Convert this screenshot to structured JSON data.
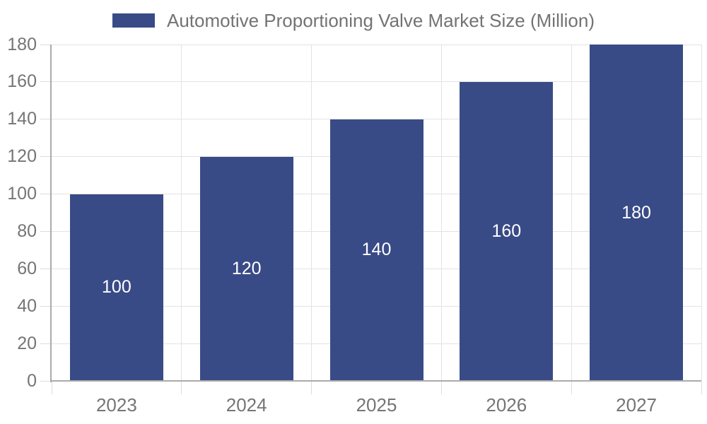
{
  "chart_data": {
    "type": "bar",
    "title": "",
    "categories": [
      "2023",
      "2024",
      "2025",
      "2026",
      "2027"
    ],
    "series": [
      {
        "name": "Automotive Proportioning Valve Market Size (Million)",
        "values": [
          100,
          120,
          140,
          160,
          180
        ]
      }
    ],
    "bar_value_labels": [
      "100",
      "120",
      "140",
      "160",
      "180"
    ],
    "ylim": [
      0,
      180
    ],
    "ytick_step": 20,
    "ytick_labels": [
      "0",
      "20",
      "40",
      "60",
      "80",
      "100",
      "120",
      "140",
      "160",
      "180"
    ],
    "grid": true,
    "legend_position": "top-center",
    "value_label_position": "inside-middle"
  },
  "legend": {
    "label": "Automotive Proportioning Valve Market Size (Million)"
  },
  "colors": {
    "bar": "#394B86",
    "bar_label_text": "#FFFFFF",
    "axis_text": "#757575",
    "legend_text": "#737373",
    "gridline": "#E3E3E3",
    "tick": "#DCDCE0",
    "axis_line": "#ABABAB",
    "background": "#FFFFFF"
  }
}
